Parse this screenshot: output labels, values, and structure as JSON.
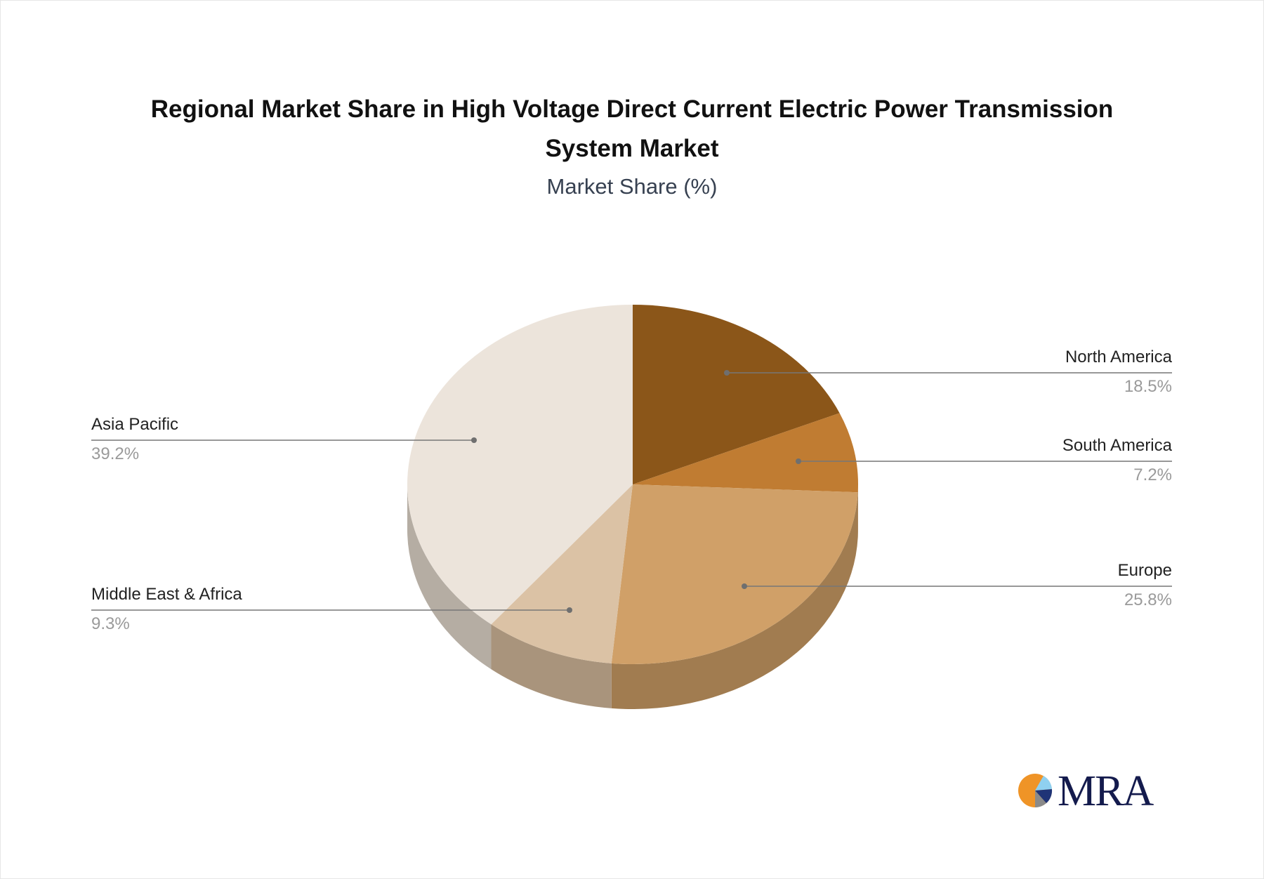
{
  "title_line1": "Regional Market Share in High Voltage Direct Current Electric Power Transmission",
  "title_line2": "System Market",
  "subtitle": "Market Share (%)",
  "logo": {
    "text": "MRA",
    "icon": "pie-logo-icon"
  },
  "chart_data": {
    "type": "pie",
    "title": "Regional Market Share in High Voltage Direct Current Electric Power Transmission System Market",
    "subtitle": "Market Share (%)",
    "categories": [
      "North America",
      "South America",
      "Europe",
      "Middle East & Africa",
      "Asia Pacific"
    ],
    "values": [
      18.5,
      7.2,
      25.8,
      9.3,
      39.2
    ],
    "colors": [
      "#8b5619",
      "#c07c32",
      "#d0a068",
      "#dbc2a5",
      "#ece4db"
    ],
    "labels": [
      {
        "name": "North America",
        "value": "18.5%"
      },
      {
        "name": "South America",
        "value": "7.2%"
      },
      {
        "name": "Europe",
        "value": "25.8%"
      },
      {
        "name": "Middle East & Africa",
        "value": "9.3%"
      },
      {
        "name": "Asia Pacific",
        "value": "39.2%"
      }
    ],
    "style": "3d-pie",
    "legend": "callout-labels"
  }
}
